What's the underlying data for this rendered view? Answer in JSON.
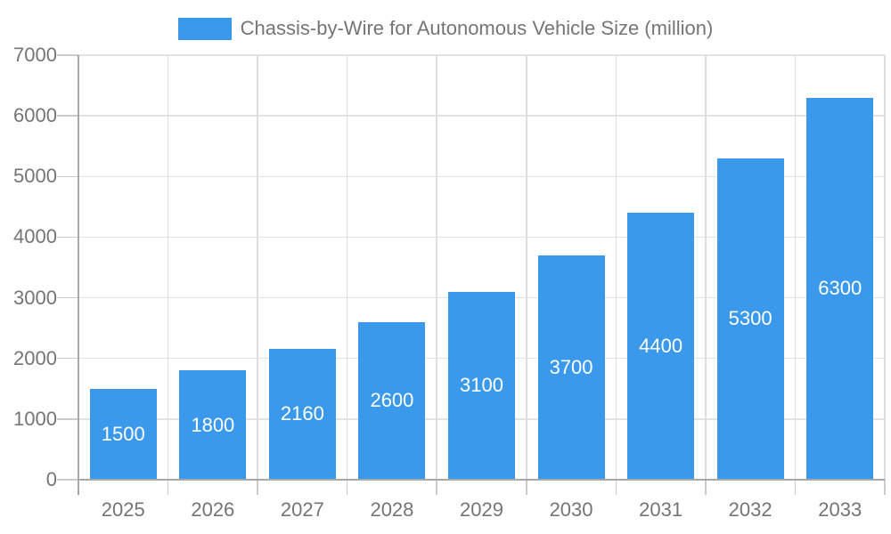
{
  "chart_data": {
    "type": "bar",
    "title": "Chassis-by-Wire for Autonomous Vehicle Size (million)",
    "series_name": "Chassis-by-Wire for Autonomous Vehicle Size (million)",
    "categories": [
      "2025",
      "2026",
      "2027",
      "2028",
      "2029",
      "2030",
      "2031",
      "2032",
      "2033"
    ],
    "values": [
      1500,
      1800,
      2160,
      2600,
      3100,
      3700,
      4400,
      5300,
      6300
    ],
    "value_labels": [
      "1500",
      "1800",
      "2160",
      "2600",
      "3100",
      "3700",
      "4400",
      "5300",
      "6300"
    ],
    "xlabel": "",
    "ylabel": "",
    "ylim": [
      0,
      7000
    ],
    "yticks": [
      0,
      1000,
      2000,
      3000,
      4000,
      5000,
      6000,
      7000
    ],
    "ytick_labels": [
      "0",
      "1000",
      "2000",
      "3000",
      "4000",
      "5000",
      "6000",
      "7000"
    ],
    "grid": true,
    "legend_position": "top-center",
    "bar_color": "#3B99EC",
    "bar_label_color": "#FFFFFF",
    "axis_text_color": "#757575"
  }
}
